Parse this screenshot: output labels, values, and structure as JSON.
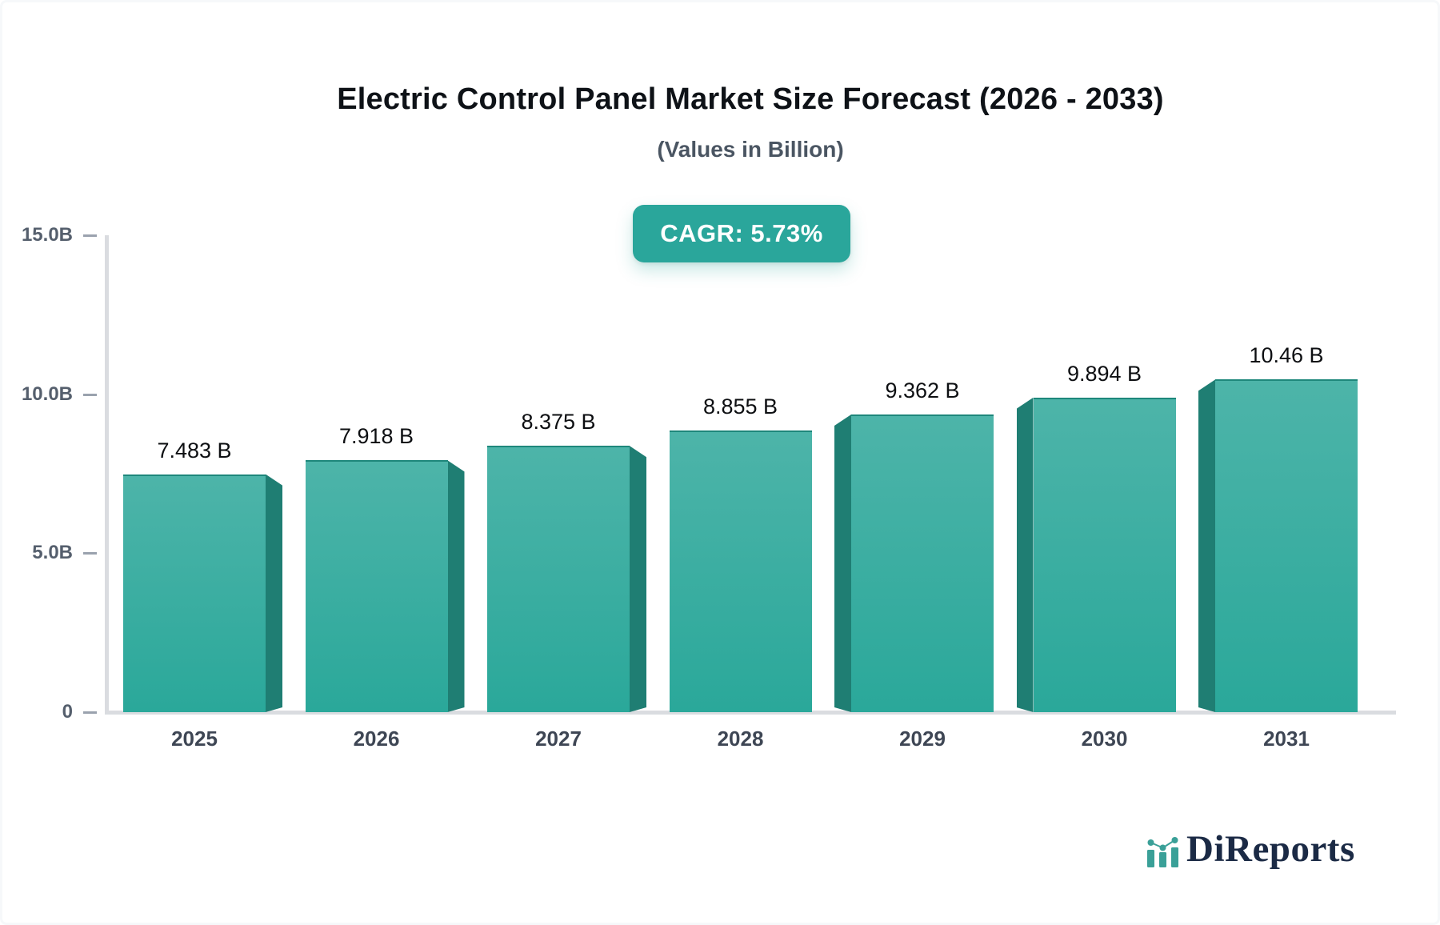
{
  "chart_data": {
    "type": "bar",
    "title": "Electric Control Panel Market Size Forecast (2026 - 2033)",
    "subtitle": "(Values in Billion)",
    "cagr_label": "CAGR: 5.73%",
    "categories": [
      "2025",
      "2026",
      "2027",
      "2028",
      "2029",
      "2030",
      "2031"
    ],
    "values": [
      7.483,
      7.918,
      8.375,
      8.855,
      9.362,
      9.894,
      10.46
    ],
    "value_labels": [
      "7.483 B",
      "7.918 B",
      "8.375 B",
      "8.855 B",
      "9.362 B",
      "9.894 B",
      "10.46 B"
    ],
    "ylim": [
      0,
      15
    ],
    "yticks": [
      {
        "value": 0,
        "label": "0"
      },
      {
        "value": 5,
        "label": "5.0B"
      },
      {
        "value": 10,
        "label": "10.0B"
      },
      {
        "value": 15,
        "label": "15.0B"
      }
    ],
    "xlabel": "",
    "ylabel": "",
    "grid": false,
    "legend": false,
    "bar_style": "3d-extruded-toward-center"
  },
  "colors": {
    "bar_top_color": "#4DB4A9",
    "bar_bottom_color": "#2AA89A",
    "bar_side_color": "#1F7E73",
    "badge_bg": "#2AA69B",
    "axis_color": "#DADCE0",
    "tick_color": "#9AA2AE",
    "ytick_text": "#555F6D",
    "xtick_text": "#3E4654",
    "value_text": "#0D0F12",
    "title_color": "#0E1217",
    "subtitle_color": "#4A5562",
    "logo_navy": "#1B2A45",
    "logo_teal": "#3AA098"
  },
  "logo": {
    "text": "DiReports",
    "icon": "mini-bar-chart-icon"
  }
}
